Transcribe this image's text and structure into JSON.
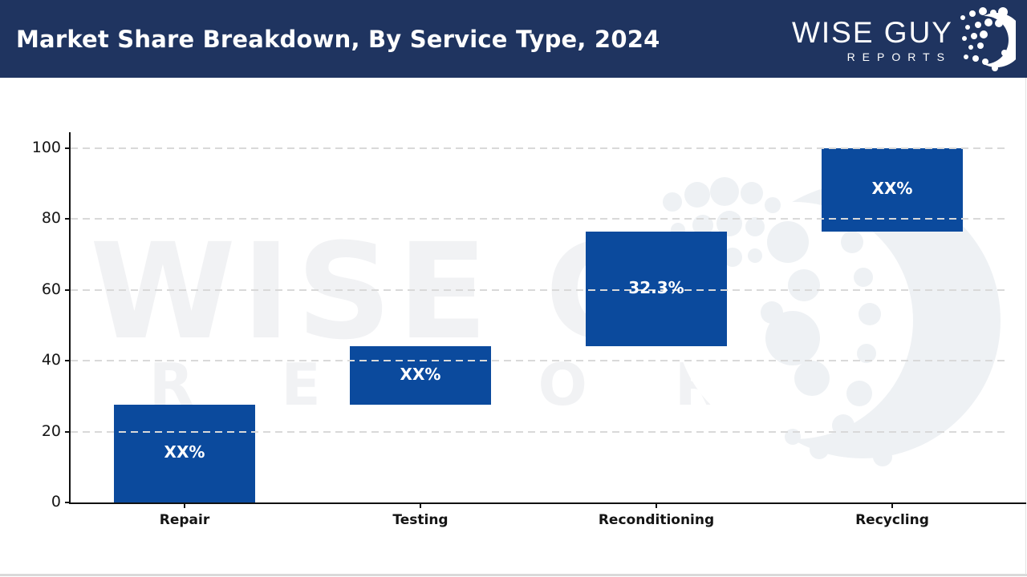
{
  "header": {
    "title": "Market Share Breakdown, By Service Type, 2024",
    "logo": {
      "line1": "WISE GUY",
      "line2": "REPORTS"
    }
  },
  "watermark": {
    "line1": "WISE GU",
    "line2": "R E P O R T S"
  },
  "colors": {
    "header_bg": "#1f3460",
    "bar_blue": "#0b4a9d",
    "gridline": "#d9d9d9",
    "axis": "#111111",
    "watermark": "#f1f2f4",
    "bar_label_text": "#ffffff"
  },
  "chart_data": {
    "type": "bar",
    "subtype": "waterfall",
    "title": "Market Share Breakdown, By Service Type, 2024",
    "categories": [
      "Repair",
      "Testing",
      "Reconditioning",
      "Recycling"
    ],
    "segments": [
      {
        "category": "Repair",
        "start": 0,
        "end": 27.5,
        "increment": 27.5,
        "label": "XX%"
      },
      {
        "category": "Testing",
        "start": 27.5,
        "end": 44.1,
        "increment": 16.6,
        "label": "XX%"
      },
      {
        "category": "Reconditioning",
        "start": 44.1,
        "end": 76.4,
        "increment": 32.3,
        "label": "32.3%"
      },
      {
        "category": "Recycling",
        "start": 76.4,
        "end": 100,
        "increment": 23.6,
        "label": "XX%"
      }
    ],
    "xlabel": "",
    "ylabel": "",
    "ylim": [
      0,
      100
    ],
    "yticks": [
      0,
      20,
      40,
      60,
      80,
      100
    ],
    "grid": "horizontal-dashed",
    "legend": null
  }
}
